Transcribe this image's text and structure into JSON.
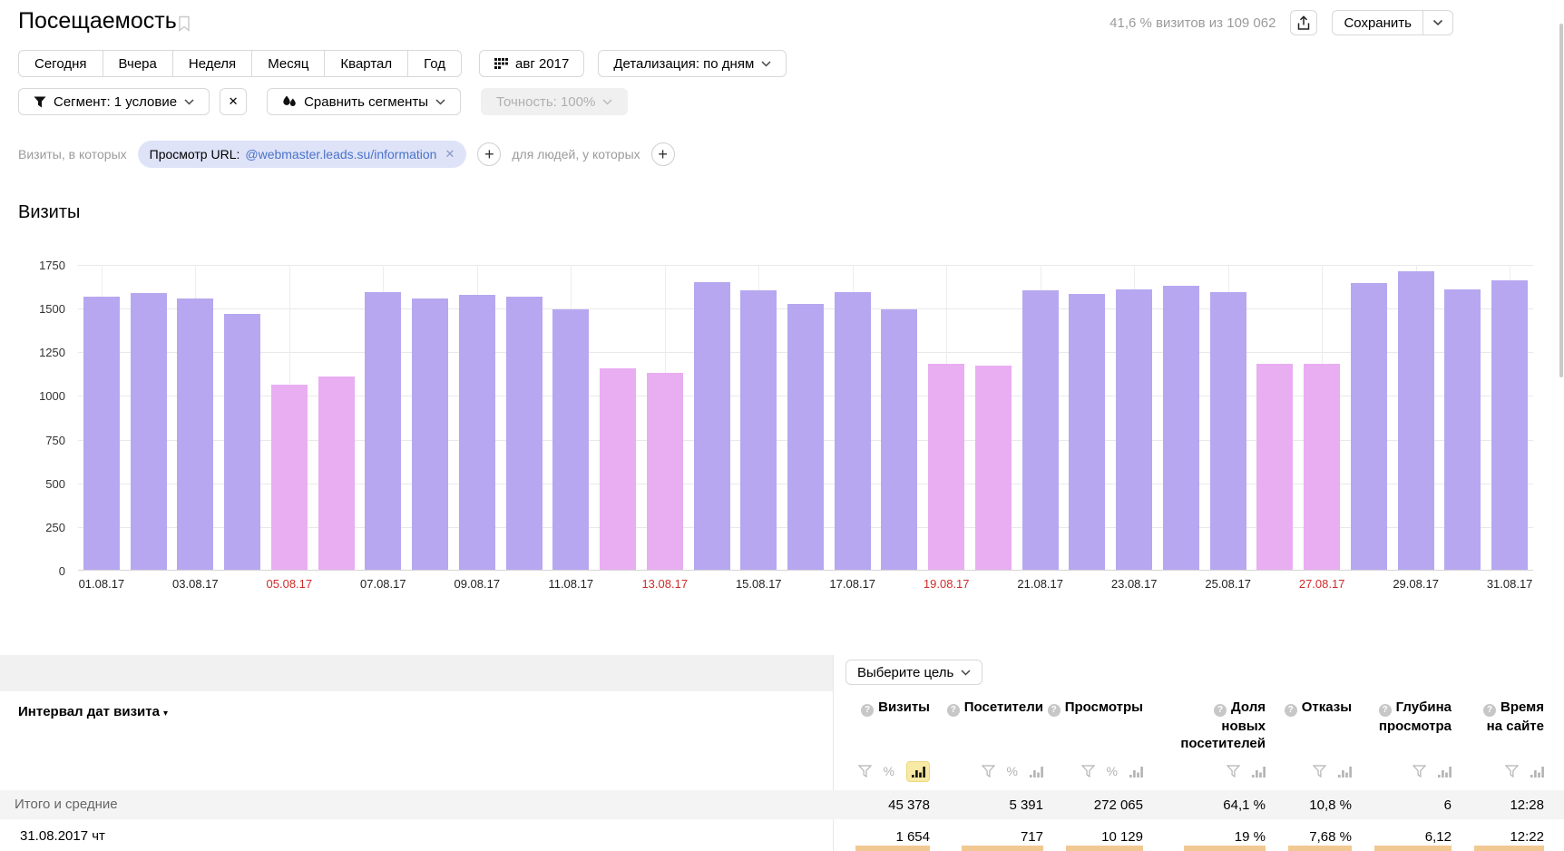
{
  "header": {
    "title": "Посещаемость",
    "sample_info": "41,6 % визитов из 109 062",
    "save_label": "Сохранить"
  },
  "toolbar": {
    "period_tabs": [
      "Сегодня",
      "Вчера",
      "Неделя",
      "Месяц",
      "Квартал",
      "Год"
    ],
    "calendar_label": "авг 2017",
    "detalization_label": "Детализация: по дням",
    "segment_label": "Сегмент: 1 условие",
    "compare_label": "Сравнить сегменты",
    "precision_label": "Точность: 100%"
  },
  "filters": {
    "visits_label": "Визиты, в которых",
    "chip_prefix": "Просмотр URL:",
    "chip_value": "@webmaster.leads.su/information",
    "people_label": "для людей, у которых"
  },
  "icons": {
    "help": "?",
    "percent": "%",
    "plus": "+",
    "close": "✕",
    "sort_desc": "▾"
  },
  "chart_data": {
    "type": "bar",
    "title": "Визиты",
    "xlabel": "",
    "ylabel": "",
    "ylim": [
      0,
      1750
    ],
    "ytick_step": 250,
    "grid": true,
    "bar_color": "#b7a7f0",
    "weekend_bar_color": "#e9adf2",
    "categories": [
      "01.08.17",
      "02.08.17",
      "03.08.17",
      "04.08.17",
      "05.08.17",
      "06.08.17",
      "07.08.17",
      "08.08.17",
      "09.08.17",
      "10.08.17",
      "11.08.17",
      "12.08.17",
      "13.08.17",
      "14.08.17",
      "15.08.17",
      "16.08.17",
      "17.08.17",
      "18.08.17",
      "19.08.17",
      "20.08.17",
      "21.08.17",
      "22.08.17",
      "23.08.17",
      "24.08.17",
      "25.08.17",
      "26.08.17",
      "27.08.17",
      "28.08.17",
      "29.08.17",
      "30.08.17",
      "31.08.17"
    ],
    "values": [
      1565,
      1585,
      1555,
      1465,
      1060,
      1105,
      1590,
      1555,
      1575,
      1565,
      1490,
      1155,
      1125,
      1645,
      1600,
      1520,
      1590,
      1490,
      1180,
      1170,
      1600,
      1580,
      1605,
      1625,
      1590,
      1180,
      1180,
      1640,
      1710,
      1605,
      1654
    ],
    "weekend_days": [
      5,
      6,
      12,
      13,
      19,
      20,
      26,
      27
    ],
    "tick_days": [
      1,
      3,
      5,
      7,
      9,
      11,
      13,
      15,
      17,
      19,
      21,
      23,
      25,
      27,
      29,
      31
    ],
    "red_tick_days": [
      5,
      13,
      19,
      27
    ]
  },
  "table": {
    "goal_button_label": "Выберите цель",
    "row_dimension_label": "Интервал дат визита",
    "columns": [
      {
        "label": "Визиты",
        "lines": [
          "Визиты"
        ],
        "icons": [
          "funnel",
          "percent",
          "bars-active"
        ]
      },
      {
        "label": "Посетители",
        "lines": [
          "Посетители"
        ],
        "icons": [
          "funnel",
          "percent",
          "bars"
        ]
      },
      {
        "label": "Просмотры",
        "lines": [
          "Просмотры"
        ],
        "icons": [
          "funnel",
          "percent",
          "bars"
        ]
      },
      {
        "label": "Доля новых посетителей",
        "lines": [
          "Доля",
          "новых",
          "посетителей"
        ],
        "icons": [
          "funnel",
          "bars"
        ]
      },
      {
        "label": "Отказы",
        "lines": [
          "Отказы"
        ],
        "icons": [
          "funnel",
          "bars"
        ]
      },
      {
        "label": "Глубина просмотра",
        "lines": [
          "Глубина",
          "просмотра"
        ],
        "icons": [
          "funnel",
          "bars"
        ]
      },
      {
        "label": "Время на сайте",
        "lines": [
          "Время",
          "на сайте"
        ],
        "icons": [
          "funnel",
          "bars"
        ]
      }
    ],
    "totals_label": "Итого и средние",
    "totals": [
      "45 378",
      "5 391",
      "272 065",
      "64,1 %",
      "10,8 %",
      "6",
      "12:28"
    ],
    "rows": [
      {
        "label": "31.08.2017 чт",
        "values": [
          "1 654",
          "717",
          "10 129",
          "19 %",
          "7,68 %",
          "6,12",
          "12:22"
        ]
      }
    ]
  }
}
